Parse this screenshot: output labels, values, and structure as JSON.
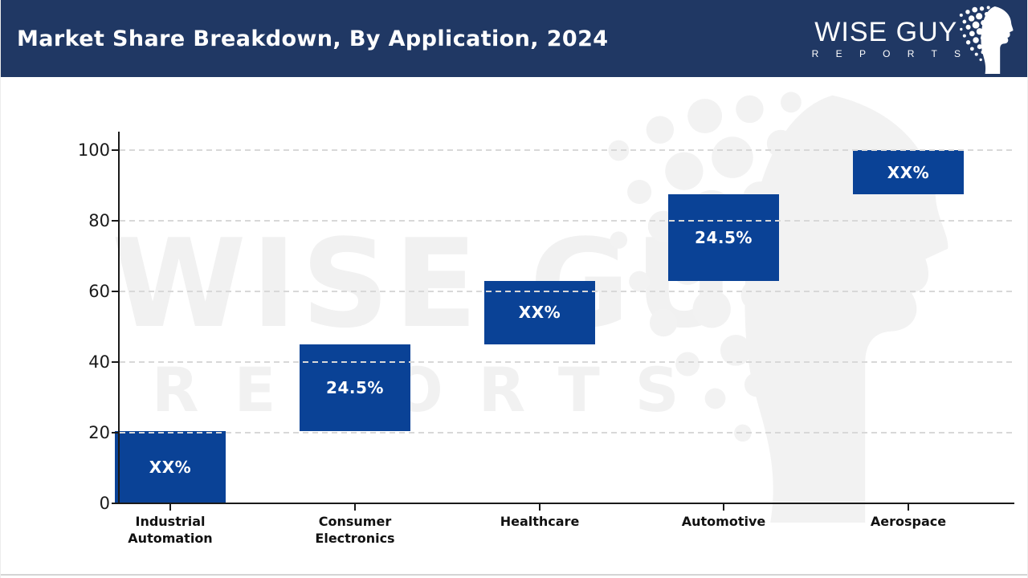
{
  "header": {
    "title": "Market Share Breakdown, By Application, 2024",
    "bg_color": "#203864",
    "logo": {
      "line1": "WISE GUY",
      "line2": "R E P O R T S"
    }
  },
  "watermark": {
    "line1": "WISE GUY",
    "line2": "REPORTS"
  },
  "chart_data": {
    "type": "bar",
    "subtype": "waterfall",
    "title": "Market Share Breakdown, By Application, 2024",
    "xlabel": "",
    "ylabel": "",
    "ylim": [
      0,
      105
    ],
    "yticks": [
      0,
      20,
      40,
      60,
      80,
      100
    ],
    "grid": "horizontal-dashed",
    "legend": "none",
    "bar_color": "#0a4296",
    "value_label_color": "#ffffff",
    "categories": [
      "Industrial\nAutomation",
      "Consumer\nElectronics",
      "Healthcare",
      "Automotive",
      "Aerospace"
    ],
    "segments": [
      {
        "category": "Industrial Automation",
        "start": 0,
        "end": 20.5,
        "value_label": "XX%"
      },
      {
        "category": "Consumer Electronics",
        "start": 20.5,
        "end": 45,
        "value_label": "24.5%"
      },
      {
        "category": "Healthcare",
        "start": 45,
        "end": 63,
        "value_label": "XX%"
      },
      {
        "category": "Automotive",
        "start": 63,
        "end": 87.5,
        "value_label": "24.5%"
      },
      {
        "category": "Aerospace",
        "start": 87.5,
        "end": 100,
        "value_label": "XX%"
      }
    ]
  }
}
